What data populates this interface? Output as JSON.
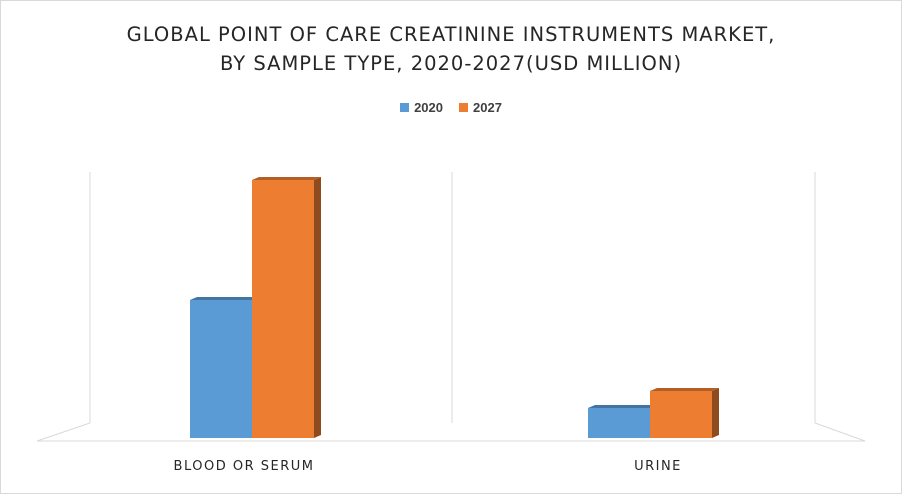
{
  "chart_data": {
    "type": "bar",
    "title_line1": "GLOBAL POINT OF CARE CREATININE INSTRUMENTS MARKET,",
    "title_line2": "BY SAMPLE TYPE, 2020-2027(USD MILLION)",
    "categories": [
      "BLOOD OR SERUM",
      "URINE"
    ],
    "series": [
      {
        "name": "2020",
        "color": "#5b9bd5",
        "values": [
          138,
          30
        ]
      },
      {
        "name": "2027",
        "color": "#ed7d31",
        "values": [
          258,
          47
        ]
      }
    ],
    "ylim": [
      0,
      265
    ],
    "grid": false,
    "legend_position": "top",
    "style": "3d-clustered-column"
  }
}
